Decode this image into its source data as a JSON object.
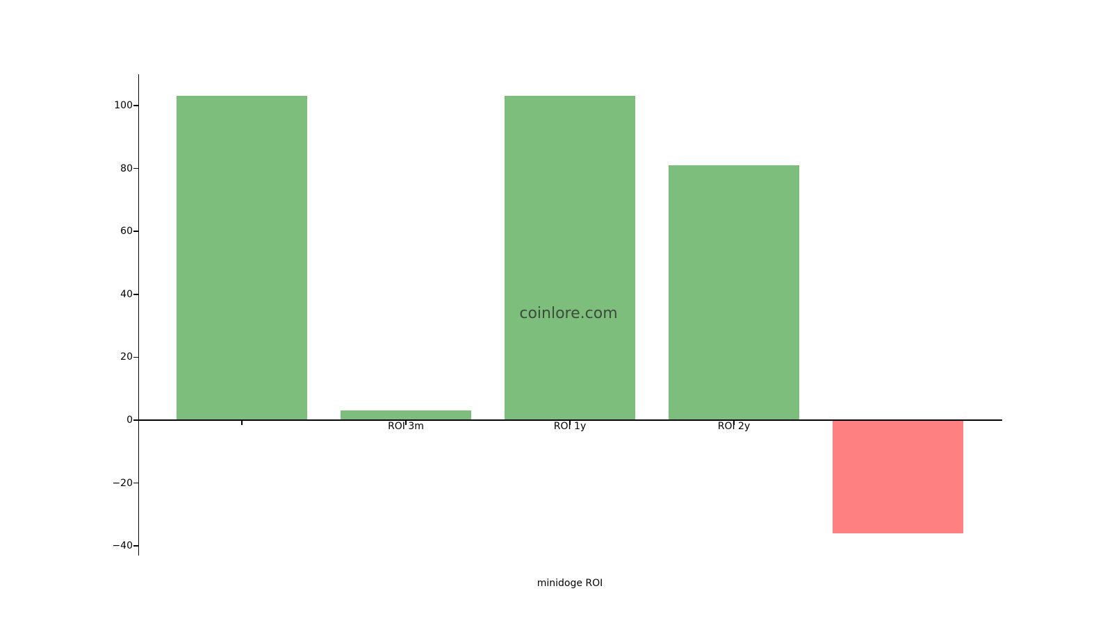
{
  "watermark": {
    "text": "coinlore.com"
  },
  "chart_data": {
    "type": "bar",
    "title": "",
    "xlabel": "minidoge ROI",
    "ylabel": "",
    "categories": [
      "",
      "ROI 3m",
      "ROI 1y",
      "ROI 2y",
      ""
    ],
    "values": [
      103,
      3,
      103,
      81,
      -36
    ],
    "bar_colors": [
      "#7dbe7d",
      "#7dbe7d",
      "#7dbe7d",
      "#7dbe7d",
      "#ff8080"
    ],
    "positive_color": "#7dbe7d",
    "negative_color": "#ff8080",
    "yticks": [
      -40,
      -20,
      0,
      20,
      40,
      60,
      80,
      100
    ],
    "ylim": [
      -43,
      110
    ],
    "grid": false,
    "legend_position": "none",
    "axis_color": "#000000"
  }
}
